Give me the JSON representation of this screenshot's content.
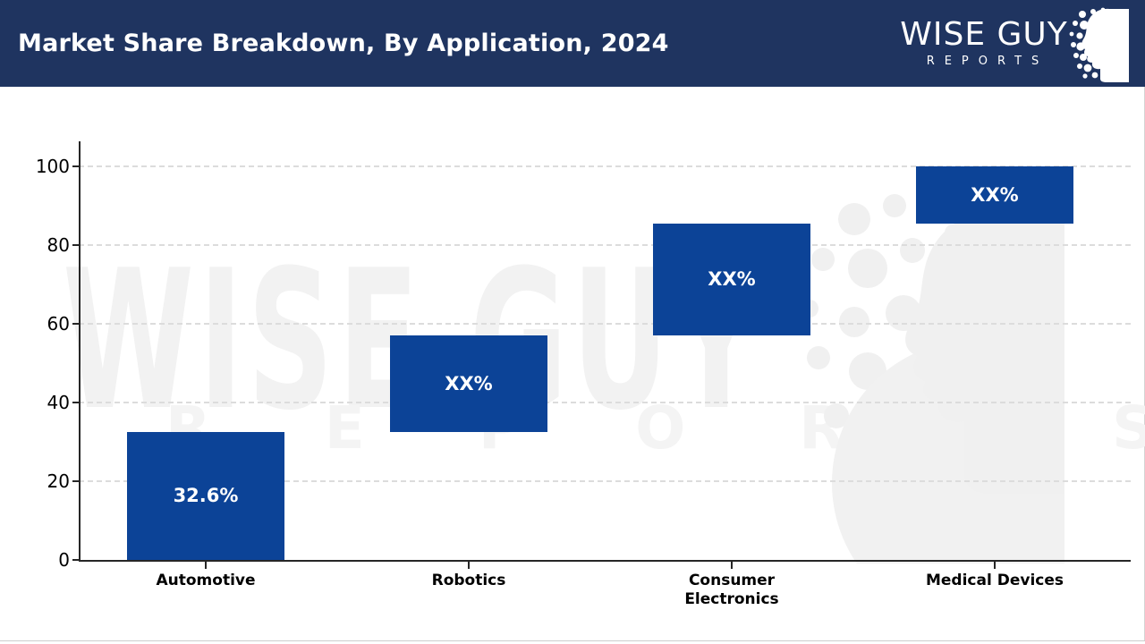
{
  "header": {
    "title": "Market Share Breakdown, By Application, 2024",
    "logo": {
      "line1": "WISE GUY",
      "line2": "REPORTS"
    }
  },
  "watermark": {
    "line1": "WISE GUY",
    "line2": "R E P O R T S"
  },
  "colors": {
    "header_bg": "#1f3460",
    "bar": "#0c4397",
    "bar_label_text": "#ffffff",
    "gridline": "#dcdcdc",
    "axis": "#262626",
    "watermark": "#f2f2f2"
  },
  "chart_data": {
    "type": "bar",
    "subtype": "waterfall",
    "title": "Market Share Breakdown, By Application, 2024",
    "xlabel": "",
    "ylabel": "",
    "ylim": [
      0,
      100
    ],
    "yticks": [
      0,
      20,
      40,
      60,
      80,
      100
    ],
    "grid": "horizontal dashed",
    "legend": "none",
    "categories": [
      "Automotive",
      "Robotics",
      "Consumer\nElectronics",
      "Medical Devices"
    ],
    "segments": [
      {
        "category": "Automotive",
        "start": 0,
        "end": 32.6,
        "label": "32.6%"
      },
      {
        "category": "Robotics",
        "start": 32.6,
        "end": 57.0,
        "label": "XX%"
      },
      {
        "category": "Consumer\nElectronics",
        "start": 57.0,
        "end": 85.5,
        "label": "XX%"
      },
      {
        "category": "Medical Devices",
        "start": 85.5,
        "end": 100.0,
        "label": "XX%"
      }
    ]
  }
}
